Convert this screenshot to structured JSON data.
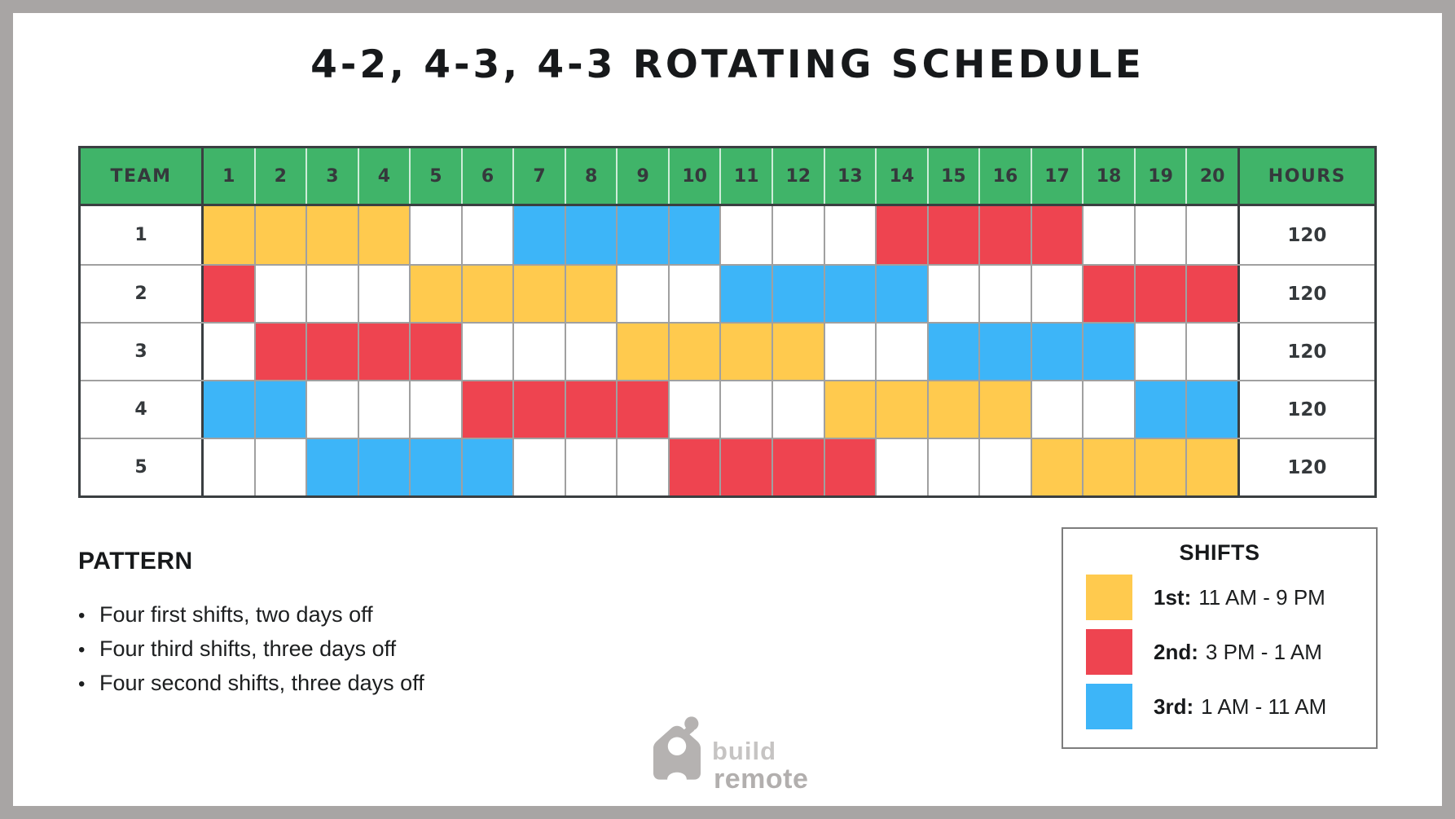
{
  "title": "4-2, 4-3, 4-3 ROTATING SCHEDULE",
  "chart_data": {
    "type": "table",
    "title": "4-2, 4-3, 4-3 Rotating Schedule",
    "team_header": "TEAM",
    "hours_header": "HOURS",
    "day_labels": [
      "1",
      "2",
      "3",
      "4",
      "5",
      "6",
      "7",
      "8",
      "9",
      "10",
      "11",
      "12",
      "13",
      "14",
      "15",
      "16",
      "17",
      "18",
      "19",
      "20"
    ],
    "rows": [
      {
        "team": "1",
        "hours": "120",
        "shifts": [
          "1st",
          "1st",
          "1st",
          "1st",
          "off",
          "off",
          "3rd",
          "3rd",
          "3rd",
          "3rd",
          "off",
          "off",
          "off",
          "2nd",
          "2nd",
          "2nd",
          "2nd",
          "off",
          "off",
          "off"
        ]
      },
      {
        "team": "2",
        "hours": "120",
        "shifts": [
          "2nd",
          "off",
          "off",
          "off",
          "1st",
          "1st",
          "1st",
          "1st",
          "off",
          "off",
          "3rd",
          "3rd",
          "3rd",
          "3rd",
          "off",
          "off",
          "off",
          "2nd",
          "2nd",
          "2nd"
        ]
      },
      {
        "team": "3",
        "hours": "120",
        "shifts": [
          "off",
          "2nd",
          "2nd",
          "2nd",
          "2nd",
          "off",
          "off",
          "off",
          "1st",
          "1st",
          "1st",
          "1st",
          "off",
          "off",
          "3rd",
          "3rd",
          "3rd",
          "3rd",
          "off",
          "off"
        ]
      },
      {
        "team": "4",
        "hours": "120",
        "shifts": [
          "3rd",
          "3rd",
          "off",
          "off",
          "off",
          "2nd",
          "2nd",
          "2nd",
          "2nd",
          "off",
          "off",
          "off",
          "1st",
          "1st",
          "1st",
          "1st",
          "off",
          "off",
          "3rd",
          "3rd"
        ]
      },
      {
        "team": "5",
        "hours": "120",
        "shifts": [
          "off",
          "off",
          "3rd",
          "3rd",
          "3rd",
          "3rd",
          "off",
          "off",
          "off",
          "2nd",
          "2nd",
          "2nd",
          "2nd",
          "off",
          "off",
          "off",
          "1st",
          "1st",
          "1st",
          "1st"
        ]
      }
    ],
    "shift_colors": {
      "1st": "#FFCA4E",
      "2nd": "#EE4450",
      "3rd": "#3DB5F8",
      "off": "#FFFFFF"
    }
  },
  "pattern": {
    "heading": "PATTERN",
    "items": [
      "Four first shifts, two days off",
      "Four third shifts, three days off",
      "Four second shifts, three days off"
    ]
  },
  "legend": {
    "heading": "SHIFTS",
    "items": [
      {
        "label": "1st:",
        "time": "11 AM - 9 PM",
        "color": "#FFCA4E"
      },
      {
        "label": "2nd:",
        "time": "3 PM - 1 AM",
        "color": "#EE4450"
      },
      {
        "label": "3rd:",
        "time": "1 AM - 11 AM",
        "color": "#3DB5F8"
      }
    ]
  },
  "logo": {
    "line1": "build",
    "line2": "remote"
  },
  "colors": {
    "frame": "#A8A5A4",
    "table_border": "#3A3F41",
    "grid_line": "#A0A0A0",
    "header_green": "#40B469",
    "text_dark": "#35393C"
  }
}
